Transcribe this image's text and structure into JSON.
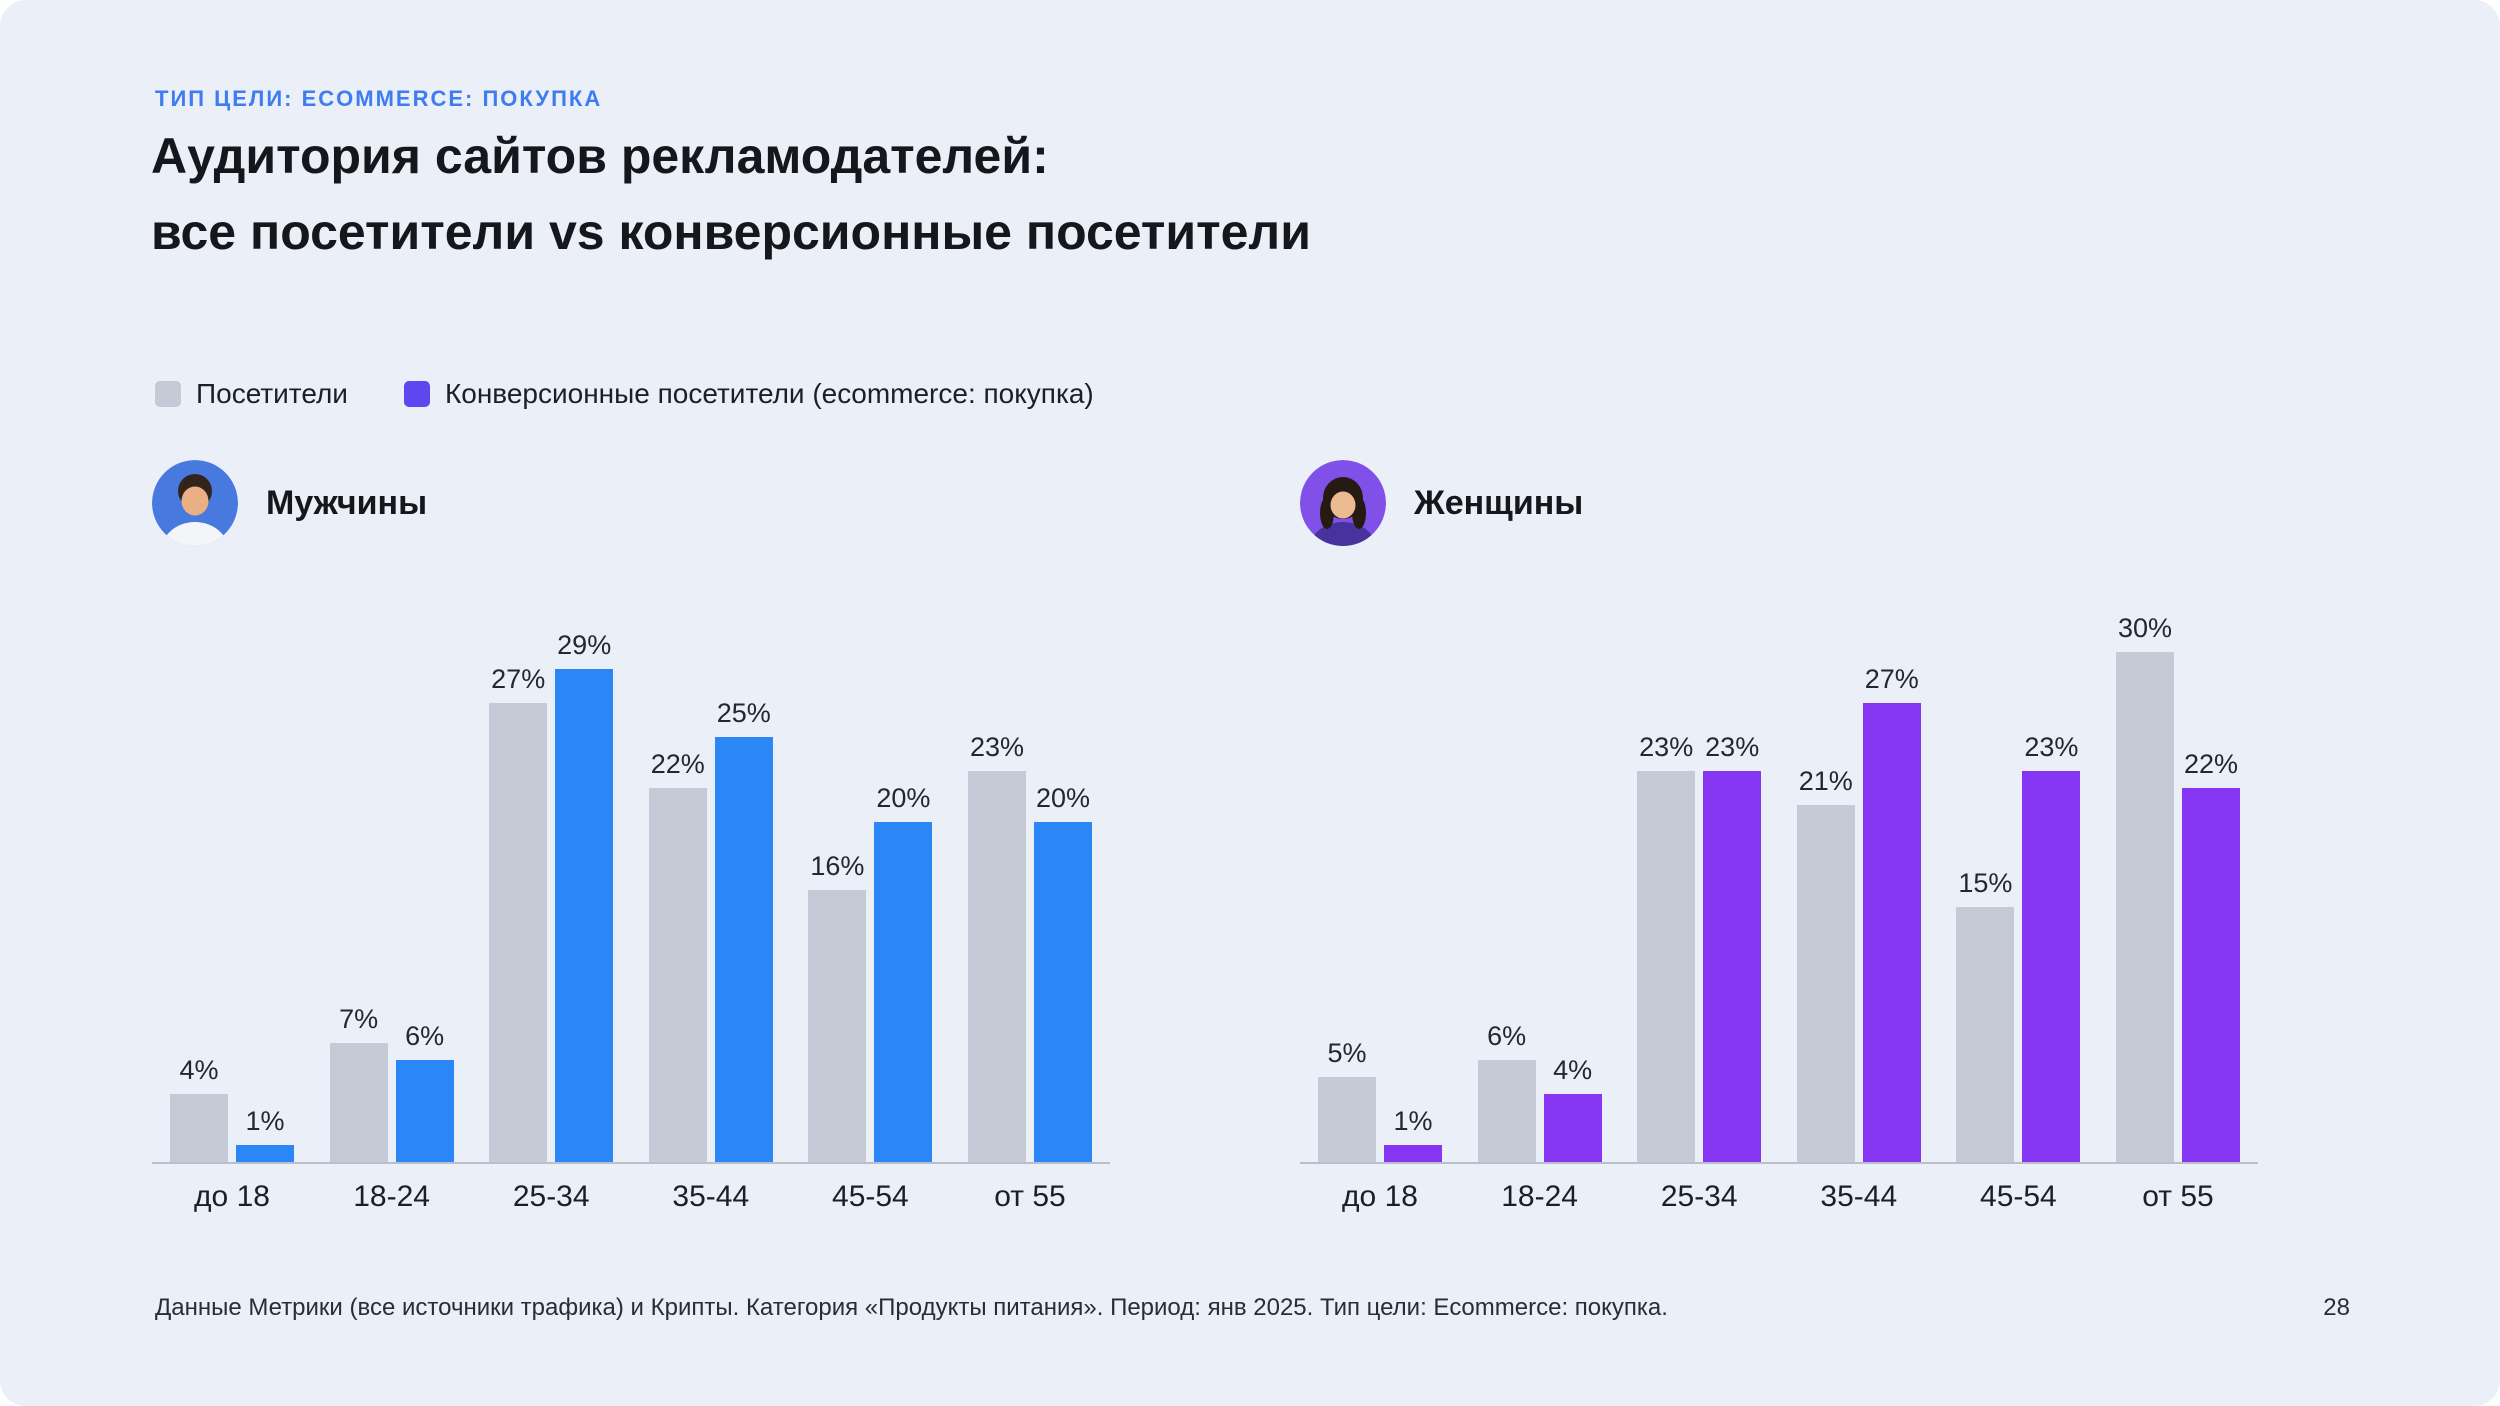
{
  "slide": {
    "eyebrow": "ТИП ЦЕЛИ: ECOMMERCE: ПОКУПКА",
    "title_lines": [
      "Аудитория сайтов рекламодателей:",
      "все посетители vs конверсионные посетители"
    ],
    "footer": "Данные Метрики (все источники трафика) и Крипты. Категория «Продукты питания». Период: янв 2025. Тип цели: Ecommerce: покупка.",
    "page_number": "28"
  },
  "legend": {
    "items": [
      {
        "label": "Посетители",
        "color": "#c4cad6"
      },
      {
        "label": "Конверсионные посетители (ecommerce: покупка)",
        "color": "#5f47f0"
      }
    ]
  },
  "colors": {
    "background": "#ebeff7",
    "eyebrow_blue": "#3e7cf2",
    "visitors_gray": "#c4cad6",
    "men_conversion_blue": "#2a87f5",
    "women_conversion_purple": "#8636f2",
    "axis_line": "#b9c0cc"
  },
  "chart_data": [
    {
      "type": "bar",
      "title": "Мужчины",
      "avatar": "man-avatar",
      "categories": [
        "до 18",
        "18-24",
        "25-34",
        "35-44",
        "45-54",
        "от 55"
      ],
      "series": [
        {
          "name": "Посетители",
          "color": "#c4cad6",
          "values": [
            4,
            7,
            27,
            22,
            16,
            23
          ]
        },
        {
          "name": "Конверсионные посетители (ecommerce: покупка)",
          "color": "#2a87f5",
          "values": [
            1,
            6,
            29,
            25,
            20,
            20
          ]
        }
      ],
      "unit": "%",
      "ylim": [
        0,
        30
      ],
      "grid": false,
      "legend_position": "top",
      "xlabel": "",
      "ylabel": ""
    },
    {
      "type": "bar",
      "title": "Женщины",
      "avatar": "woman-avatar",
      "categories": [
        "до 18",
        "18-24",
        "25-34",
        "35-44",
        "45-54",
        "от 55"
      ],
      "series": [
        {
          "name": "Посетители",
          "color": "#c4cad6",
          "values": [
            5,
            6,
            23,
            21,
            15,
            30
          ]
        },
        {
          "name": "Конверсионные посетители (ecommerce: покупка)",
          "color": "#8636f2",
          "values": [
            1,
            4,
            23,
            27,
            23,
            22
          ]
        }
      ],
      "unit": "%",
      "ylim": [
        0,
        30
      ],
      "grid": false,
      "legend_position": "top",
      "xlabel": "",
      "ylabel": ""
    }
  ]
}
